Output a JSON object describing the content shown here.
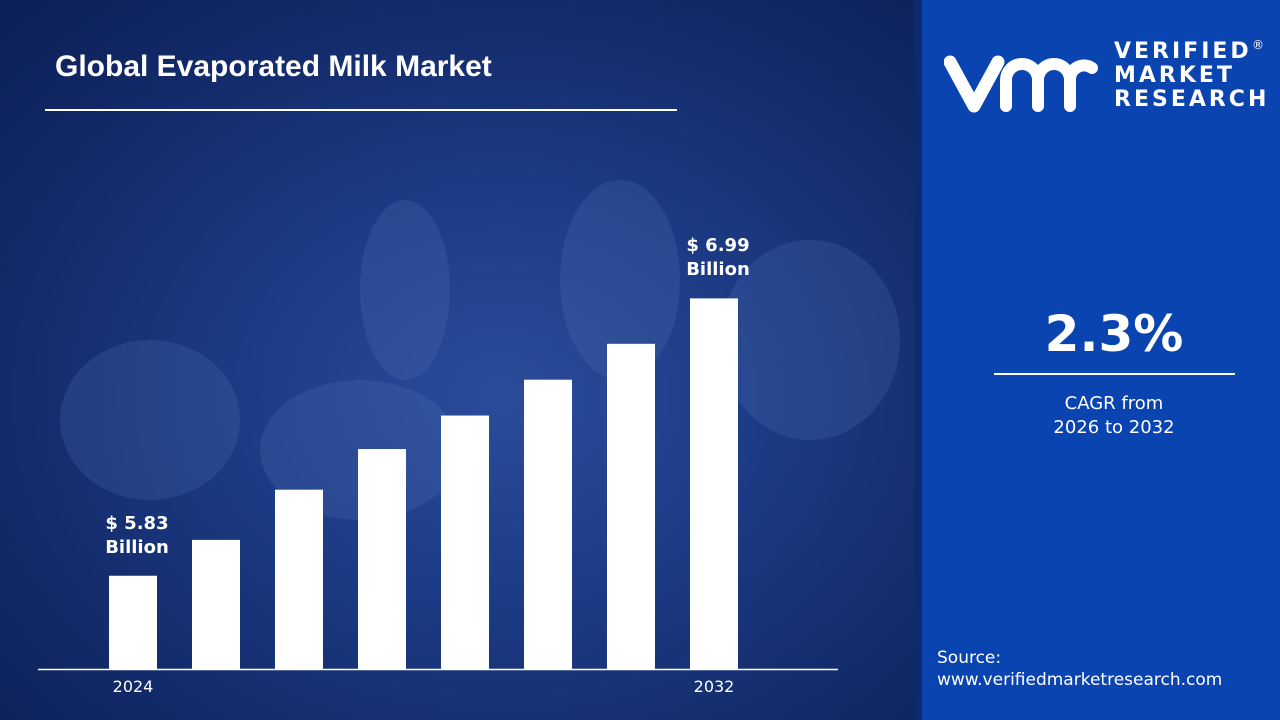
{
  "title": "Global Evaporated Milk Market",
  "chart_data": {
    "type": "bar",
    "title": "Global Evaporated Milk Market",
    "categories": [
      "2024",
      "",
      "",
      "",
      "",
      "",
      "",
      "2032"
    ],
    "values": [
      5.83,
      5.98,
      6.19,
      6.36,
      6.5,
      6.65,
      6.8,
      6.99
    ],
    "data_labels": [
      {
        "index": 0,
        "value": "$ 5.83",
        "unit": "Billion"
      },
      {
        "index": 7,
        "value": "$ 6.99",
        "unit": "Billion"
      }
    ],
    "xlabel": "",
    "ylabel": "",
    "ylim": [
      5.44,
      7.0
    ],
    "grid": false,
    "bar_color": "#ffffff"
  },
  "brand": {
    "logo_letters": "vmr",
    "line1": "VERIFIED",
    "line2": "MARKET",
    "line3": "RESEARCH",
    "registered": "®"
  },
  "cagr": {
    "value": "2.3%",
    "label_line1": "CAGR from",
    "label_line2": "2026 to 2032"
  },
  "source": {
    "label": "Source:",
    "url": "www.verifiedmarketresearch.com"
  },
  "colors": {
    "panel": "#0a44b0",
    "background": "#1d3c86"
  }
}
